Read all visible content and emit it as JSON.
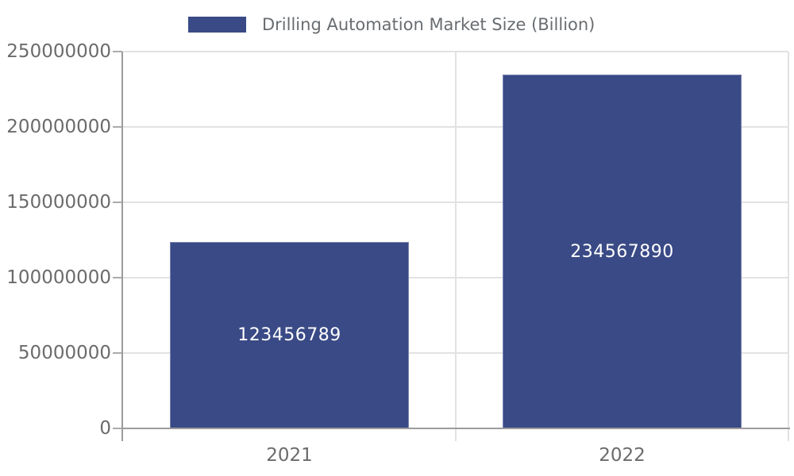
{
  "chart_data": {
    "type": "bar",
    "title": "Drilling Automation Market Size (Billion)",
    "categories": [
      "2021",
      "2022"
    ],
    "series": [
      {
        "name": "Drilling Automation Market Size (Billion)",
        "values": [
          123456789,
          234567890
        ]
      }
    ],
    "bar_labels": [
      "123456789",
      "234567890"
    ],
    "xlabel": "",
    "ylabel": "",
    "ylim": [
      0,
      250000000
    ],
    "yticks": [
      0,
      50000000,
      100000000,
      150000000,
      200000000,
      250000000
    ],
    "ytick_labels": [
      "0",
      "50000000",
      "100000000",
      "150000000",
      "200000000",
      "250000000"
    ],
    "grid": true,
    "legend_position": "top",
    "bar_width_frac": 0.72,
    "colors": {
      "bar": "#3a4a86",
      "bar_border": "#7b85b0",
      "grid": "#e2e2e2",
      "axis": "#9c9c9c",
      "tick": "#ababab",
      "tick_label": "#6b6b6b",
      "legend_text": "#696d71",
      "bar_label": "#ffffff"
    }
  }
}
